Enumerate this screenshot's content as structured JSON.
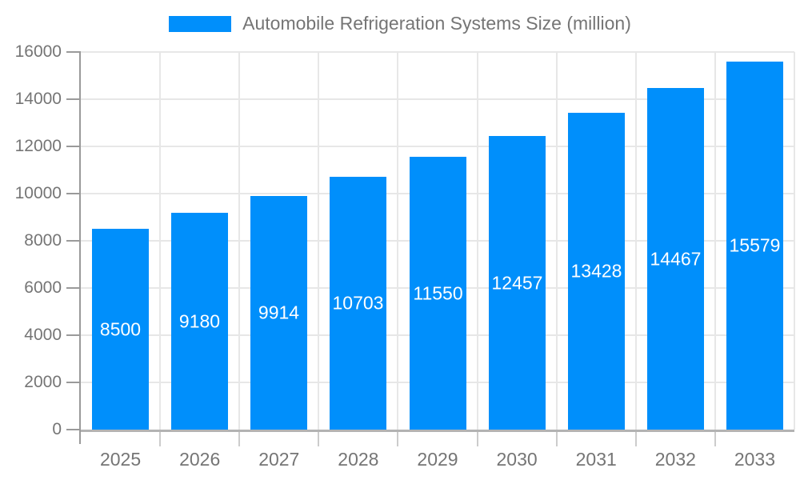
{
  "legend": {
    "label": "Automobile Refrigeration Systems Size (million)"
  },
  "colors": {
    "bar": "#008FFB",
    "grid": "#e7e7e7",
    "axis_text": "#757575",
    "y_axis_line": "#9a9a9a",
    "x_axis_line": "#b3b3b3",
    "x_tick": "#cccccc",
    "value_label": "#ffffff"
  },
  "chart_data": {
    "type": "bar",
    "title": "Automobile Refrigeration Systems Size (million)",
    "categories": [
      "2025",
      "2026",
      "2027",
      "2028",
      "2029",
      "2030",
      "2031",
      "2032",
      "2033"
    ],
    "values": [
      8500,
      9180,
      9914,
      10703,
      11550,
      12457,
      13428,
      14467,
      15579
    ],
    "xlabel": "",
    "ylabel": "",
    "ylim": [
      0,
      16000
    ],
    "yticks": [
      0,
      2000,
      4000,
      6000,
      8000,
      10000,
      12000,
      14000,
      16000
    ],
    "grid": true,
    "legend_position": "top",
    "value_labels_position": "inside-center"
  }
}
